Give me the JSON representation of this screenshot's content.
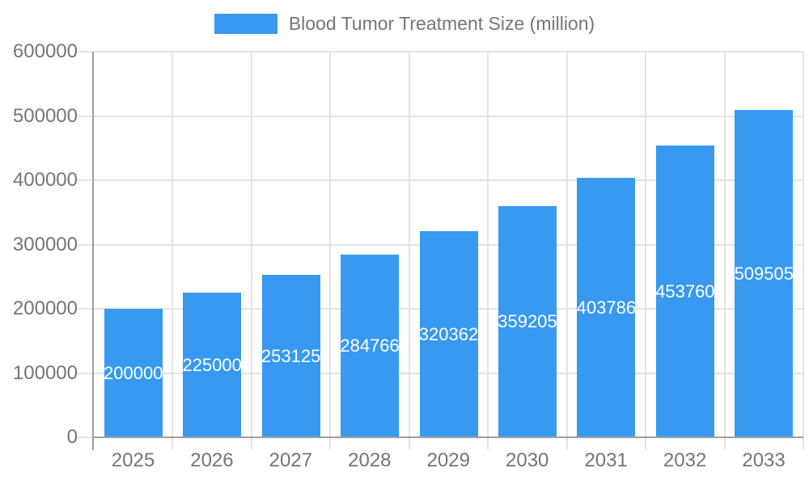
{
  "legend": {
    "label": "Blood Tumor Treatment Size (million)",
    "swatch_color": "#3899f0"
  },
  "colors": {
    "bar": "#3899f0",
    "bar_label": "#ffffff",
    "axis_line": "#9e9e9e",
    "grid_line": "#e3e3e3",
    "text": "#757575",
    "background": "#ffffff"
  },
  "chart_data": {
    "type": "bar",
    "title": "Blood Tumor Treatment Size (million)",
    "series": [
      {
        "name": "Blood Tumor Treatment Size (million)",
        "values": [
          200000,
          225000,
          253125,
          284766,
          320362,
          359205,
          403786,
          453760,
          509505
        ]
      }
    ],
    "categories": [
      "2025",
      "2026",
      "2027",
      "2028",
      "2029",
      "2030",
      "2031",
      "2032",
      "2033"
    ],
    "value_labels": [
      "200000",
      "225000",
      "253125",
      "284766",
      "320362",
      "359205",
      "403786",
      "453760",
      "509505"
    ],
    "xlabel": "",
    "ylabel": "",
    "ylim": [
      0,
      600000
    ],
    "y_ticks": [
      0,
      100000,
      200000,
      300000,
      400000,
      500000,
      600000
    ],
    "y_tick_labels": [
      "0",
      "100000",
      "200000",
      "300000",
      "400000",
      "500000",
      "600000"
    ],
    "grid": true,
    "legend_position": "top",
    "bar_value_labels": "inside-center"
  }
}
